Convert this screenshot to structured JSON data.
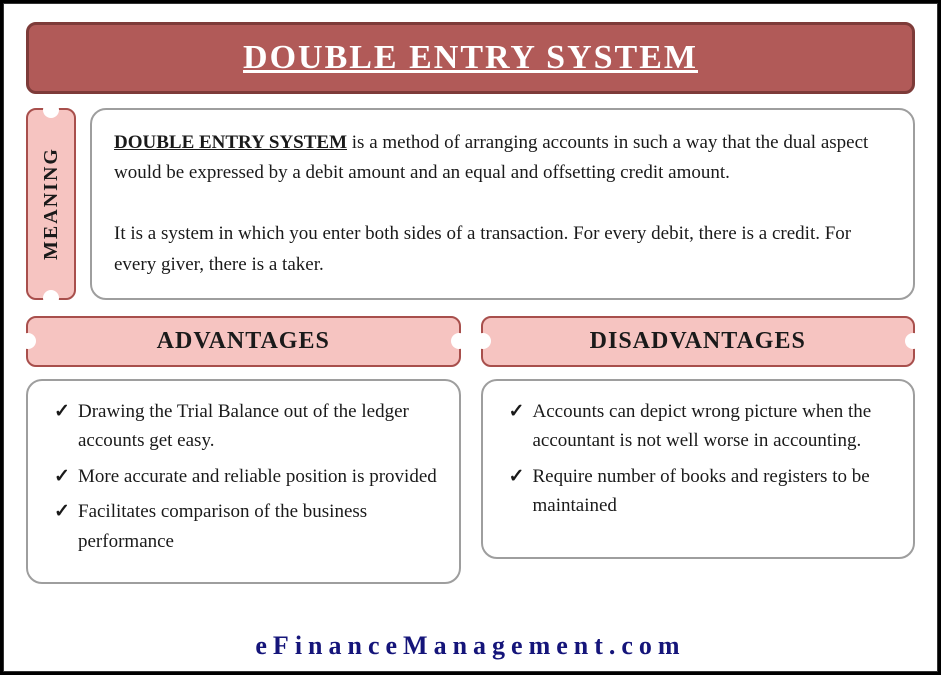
{
  "colors": {
    "banner_bg": "#b15a58",
    "banner_border": "#7d3b39",
    "banner_text": "#ffffff",
    "tab_bg": "#f6c4c1",
    "tab_border": "#a84f4c",
    "tab_text": "#1a1a1a",
    "body_border": "#9e9e9e",
    "text": "#1a1a1a",
    "footer_text": "#15157a",
    "check": "#1a1a1a"
  },
  "title": {
    "text": "DOUBLE ENTRY SYSTEM",
    "fontsize": 34
  },
  "meaning": {
    "tab_label": "MEANING",
    "tab_fontsize": 20,
    "lead": "DOUBLE ENTRY SYSTEM",
    "para1_rest": " is a method of arranging accounts in such a way that the dual aspect would be expressed by a debit amount and an equal and offsetting credit amount.",
    "para2": "It is a system in which you enter both sides of a transaction. For every debit, there is a credit. For every giver, there is a taker.",
    "body_fontsize": 19
  },
  "advantages": {
    "header": "ADVANTAGES",
    "header_fontsize": 24,
    "items": [
      "Drawing the Trial Balance out of the ledger accounts get easy.",
      "More accurate and reliable position is provided",
      "Facilitates comparison of the business performance"
    ],
    "body_fontsize": 19
  },
  "disadvantages": {
    "header": "DISADVANTAGES",
    "header_fontsize": 24,
    "items": [
      "Accounts can depict wrong picture when the accountant is not well worse in accounting.",
      "Require number of books and registers to be maintained"
    ],
    "body_fontsize": 19
  },
  "footer": {
    "text": "eFinanceManagement.com",
    "fontsize": 26
  }
}
